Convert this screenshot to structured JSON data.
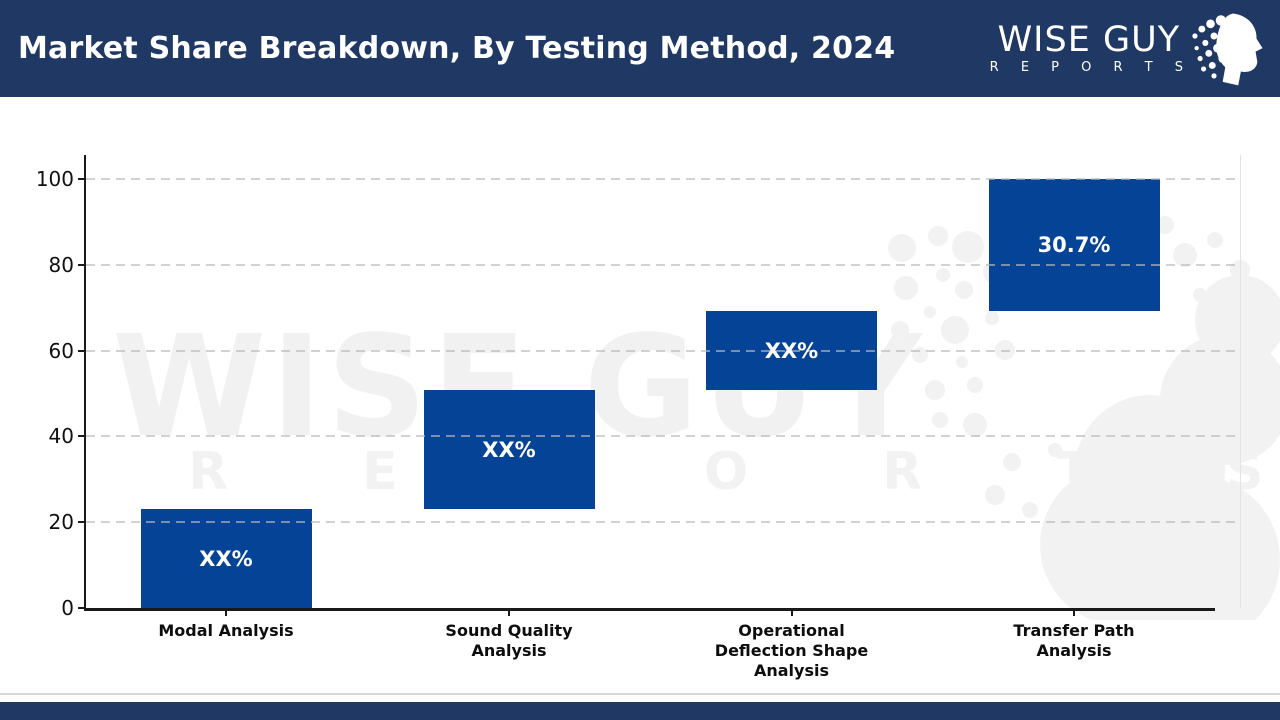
{
  "header": {
    "title": "Market Share Breakdown, By Testing Method, 2024"
  },
  "brand": {
    "name": "WISE GUY",
    "subname": "R E P O R T S"
  },
  "watermark": {
    "line1": "WISE GUY",
    "line2": "R E P O R T S"
  },
  "colors": {
    "header_bg": "#1f3864",
    "bar": "#054396",
    "bar_label": "#ffffff",
    "grid": "#d9d9d9",
    "axis": "#1a1a1a",
    "watermark": "#f1f1f1"
  },
  "chart_data": {
    "type": "bar",
    "subtype": "floating-waterfall",
    "title": "Market Share Breakdown, By Testing Method, 2024",
    "xlabel": "",
    "ylabel": "",
    "ylim": [
      0,
      100
    ],
    "yticks": [
      0,
      20,
      40,
      60,
      80,
      100
    ],
    "grid": "horizontal-dashed",
    "legend": "none",
    "categories": [
      "Modal Analysis",
      "Sound Quality Analysis",
      "Operational Deflection Shape Analysis",
      "Transfer Path Analysis"
    ],
    "categories_multiline": [
      [
        "Modal Analysis"
      ],
      [
        "Sound Quality",
        "Analysis"
      ],
      [
        "Operational",
        "Deflection Shape",
        "Analysis"
      ],
      [
        "Transfer Path",
        "Analysis"
      ]
    ],
    "segments": [
      {
        "category": "Modal Analysis",
        "start": 0,
        "end": 23,
        "value_label": "XX%"
      },
      {
        "category": "Sound Quality Analysis",
        "start": 23,
        "end": 50.7,
        "value_label": "XX%"
      },
      {
        "category": "Operational Deflection Shape Analysis",
        "start": 50.7,
        "end": 69.3,
        "value_label": "XX%"
      },
      {
        "category": "Transfer Path Analysis",
        "start": 69.3,
        "end": 100,
        "value_label": "30.7%"
      }
    ]
  }
}
